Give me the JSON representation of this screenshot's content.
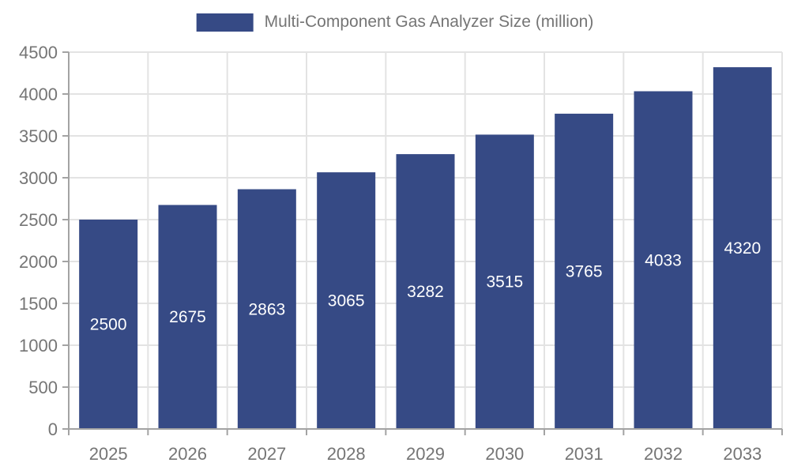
{
  "legend": {
    "label": "Multi-Component Gas Analyzer Size (million)"
  },
  "colors": {
    "bar": "#364a85",
    "grid": "#e3e3e3",
    "axis": "#a3a3a3",
    "tick_text": "#757575",
    "value_label": "#ffffff",
    "background": "#ffffff"
  },
  "chart_data": {
    "type": "bar",
    "title": "Multi-Component Gas Analyzer Size (million)",
    "categories": [
      "2025",
      "2026",
      "2027",
      "2028",
      "2029",
      "2030",
      "2031",
      "2032",
      "2033"
    ],
    "values": [
      2500,
      2675,
      2863,
      3065,
      3282,
      3515,
      3765,
      4033,
      4320
    ],
    "xlabel": "",
    "ylabel": "",
    "ylim": [
      0,
      4500
    ],
    "yticks": [
      0,
      500,
      1000,
      1500,
      2000,
      2500,
      3000,
      3500,
      4000,
      4500
    ],
    "grid": true,
    "legend_position": "top",
    "value_labels": "inside-center"
  }
}
